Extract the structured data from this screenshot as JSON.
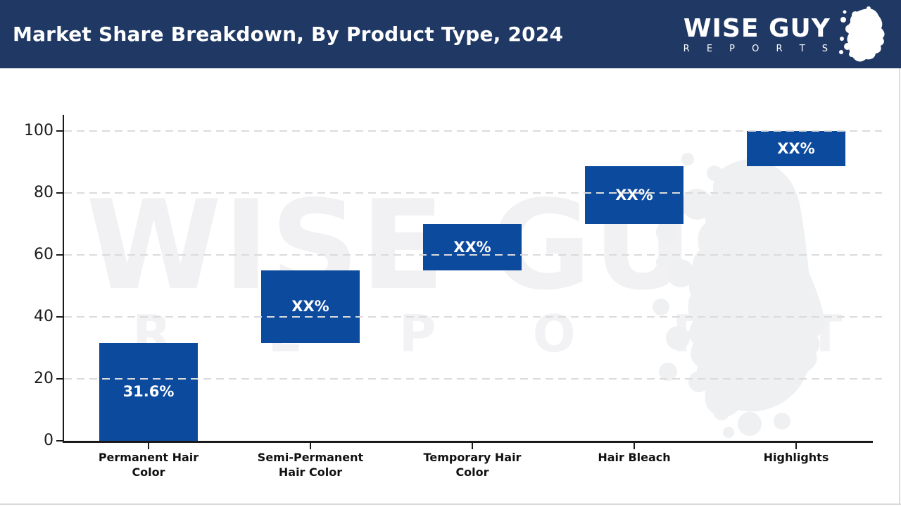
{
  "header": {
    "title": "Market Share Breakdown, By Product Type, 2024",
    "background_color": "#1f3864",
    "logo": {
      "brand_line1": "WISE GUY",
      "brand_line2": "R E P O R T S"
    }
  },
  "watermark": {
    "line1": "WISE GUY",
    "line2": "R E P O R T S"
  },
  "chart_data": {
    "type": "bar",
    "subtype": "waterfall",
    "title": "Market Share Breakdown, By Product Type, 2024",
    "categories": [
      "Permanent Hair\nColor",
      "Semi-Permanent\nHair Color",
      "Temporary Hair\nColor",
      "Hair Bleach",
      "Highlights"
    ],
    "segments": [
      {
        "category": "Permanent Hair Color",
        "start": 0,
        "end": 31.6,
        "label": "31.6%"
      },
      {
        "category": "Semi-Permanent Hair Color",
        "start": 31.6,
        "end": 55.0,
        "label": "XX%"
      },
      {
        "category": "Temporary Hair Color",
        "start": 55.0,
        "end": 70.0,
        "label": "XX%"
      },
      {
        "category": "Hair Bleach",
        "start": 70.0,
        "end": 88.6,
        "label": "XX%"
      },
      {
        "category": "Highlights",
        "start": 88.6,
        "end": 100.0,
        "label": "XX%"
      }
    ],
    "yticks": [
      0,
      20,
      40,
      60,
      80,
      100
    ],
    "ylim": [
      0,
      100
    ],
    "grid": "horizontal-dashed",
    "legend": "none",
    "bar_color": "#0c4a9e",
    "bar_label_color": "#ffffff"
  }
}
